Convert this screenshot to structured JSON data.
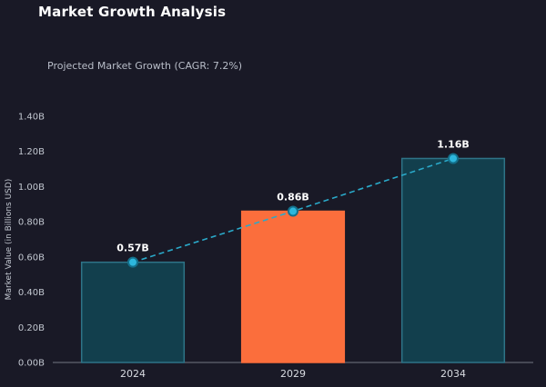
{
  "header": {
    "title": "Market Growth Analysis",
    "subtitle": "Projected Market Growth (CAGR: 7.2%)"
  },
  "chart_data": {
    "type": "bar",
    "title": "Market Growth Analysis",
    "subtitle": "Projected Market Growth (CAGR: 7.2%)",
    "categories": [
      "2024",
      "2029",
      "2034"
    ],
    "values": [
      0.57,
      0.86,
      1.16
    ],
    "data_labels": [
      "0.57B",
      "0.86B",
      "1.16B"
    ],
    "xlabel": "",
    "ylabel": "Market Value (in Billions USD)",
    "ylim": [
      0,
      1.4
    ],
    "ytick_step": 0.2,
    "ytick_labels": [
      "0.00B",
      "0.20B",
      "0.40B",
      "0.60B",
      "0.80B",
      "1.00B",
      "1.20B",
      "1.40B"
    ],
    "grid": false,
    "legend": false,
    "colors": {
      "background": "#191926",
      "bar_fills": [
        "#123f4d",
        "#fb6e3c",
        "#123f4d"
      ],
      "bar_borders": [
        "#2e7488",
        "#fb6e3c",
        "#2e7488"
      ],
      "trend_line": "#2aa9c9",
      "trend_line_style": "dashed",
      "marker_fill": "#2db7dd",
      "marker_edge": "#14708b",
      "axis_line": "#9aa0ab",
      "tick_text": "#c2c7d0",
      "label_text": "#ffffff"
    }
  }
}
